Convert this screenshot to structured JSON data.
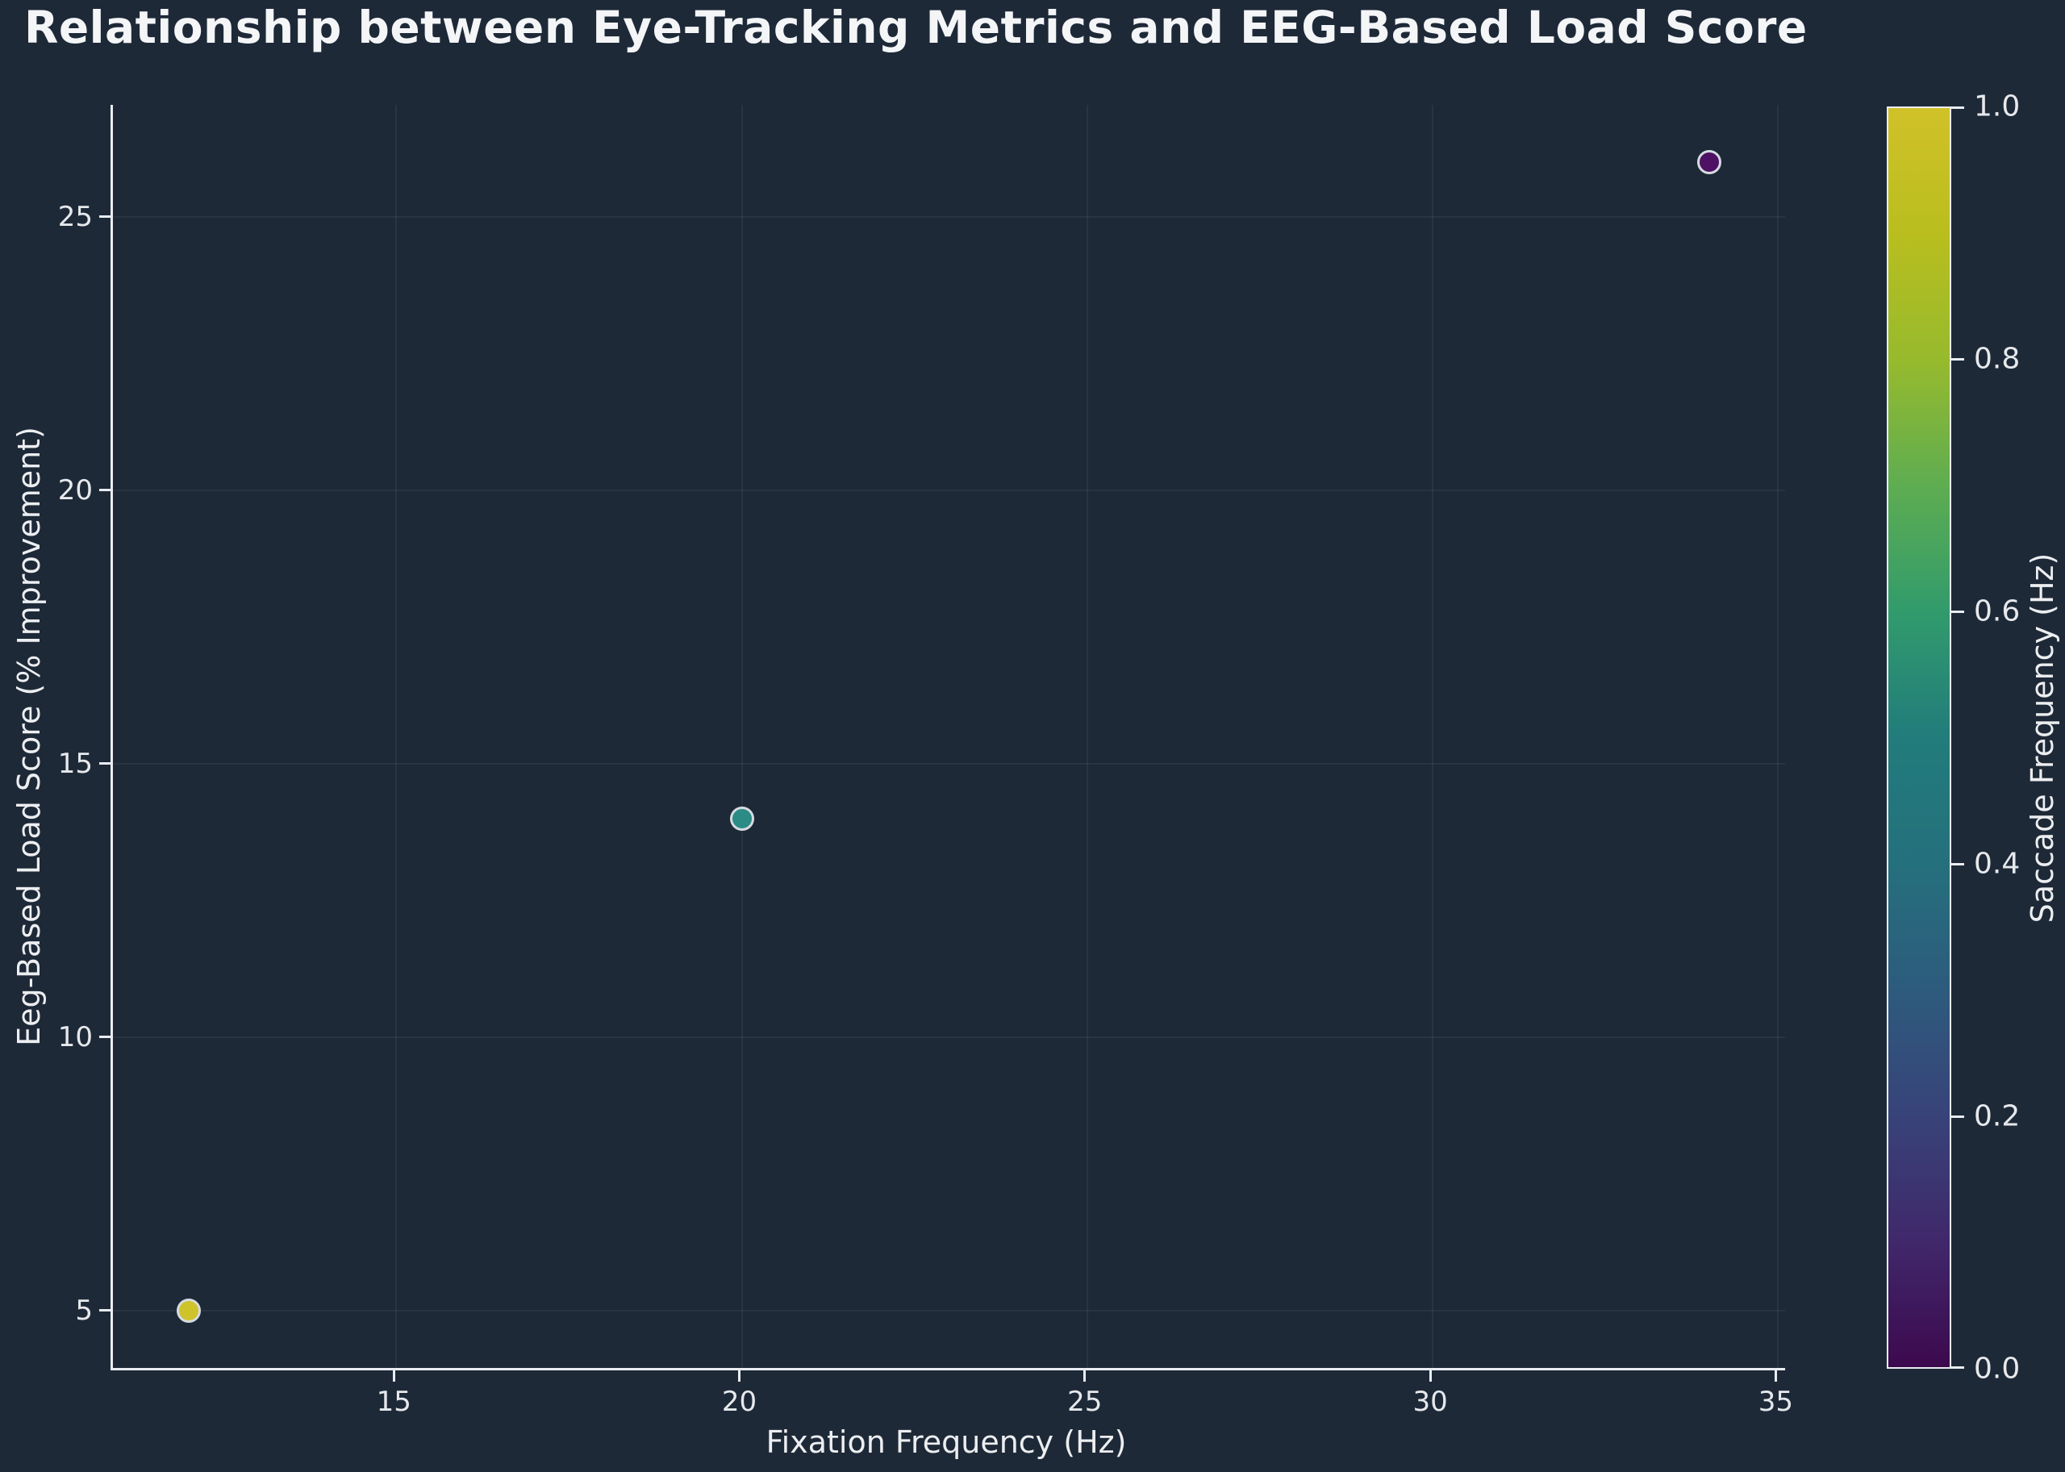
{
  "title": "Relationship between Eye-Tracking Metrics and EEG-Based Load Score",
  "colors": {
    "background": "#1e2938",
    "text": "#e6e9ec",
    "title_text": "#f3f5f7",
    "spine": "#e9edf1",
    "grid": "rgba(220,232,255,0.06)",
    "marker_edge": "#d5dbe0"
  },
  "chart_data": {
    "type": "scatter",
    "title": "Relationship between Eye-Tracking Metrics and EEG-Based Load Score",
    "xlabel": "Fixation Frequency (Hz)",
    "ylabel": "Eeg-Based Load Score (% Improvement)",
    "xlim": [
      10.9,
      35.1
    ],
    "ylim": [
      3.95,
      27.05
    ],
    "grid": true,
    "legend": "colorbar-right",
    "x_ticks": [
      {
        "value": 15,
        "label": "15"
      },
      {
        "value": 20,
        "label": "20"
      },
      {
        "value": 25,
        "label": "25"
      },
      {
        "value": 30,
        "label": "30"
      },
      {
        "value": 35,
        "label": "35"
      }
    ],
    "y_ticks": [
      {
        "value": 5,
        "label": "5"
      },
      {
        "value": 10,
        "label": "10"
      },
      {
        "value": 15,
        "label": "15"
      },
      {
        "value": 20,
        "label": "20"
      },
      {
        "value": 25,
        "label": "25"
      }
    ],
    "points": [
      {
        "x": 12,
        "y": 5,
        "saccade_frequency": 1.0,
        "color": "#cfc32b"
      },
      {
        "x": 20,
        "y": 14,
        "saccade_frequency": 0.5,
        "color": "#2b8b85"
      },
      {
        "x": 34,
        "y": 26,
        "saccade_frequency": 0.0,
        "color": "#4f1163"
      }
    ],
    "colorbar": {
      "label": "Saccade Frequency (Hz)",
      "range": [
        0.0,
        1.0
      ],
      "colormap": "viridis",
      "ticks": [
        {
          "value": 0.0,
          "label": "0.0"
        },
        {
          "value": 0.2,
          "label": "0.2"
        },
        {
          "value": 0.4,
          "label": "0.4"
        },
        {
          "value": 0.6,
          "label": "0.6"
        },
        {
          "value": 0.8,
          "label": "0.8"
        },
        {
          "value": 1.0,
          "label": "1.0"
        }
      ],
      "gradient_stops_bottom_to_top": [
        "#3d094e",
        "#40286b",
        "#384379",
        "#2d5b7d",
        "#25707d",
        "#217c7b",
        "#319b6c",
        "#5ead51",
        "#97ba2d",
        "#b9be1e",
        "#d1c129"
      ]
    }
  }
}
